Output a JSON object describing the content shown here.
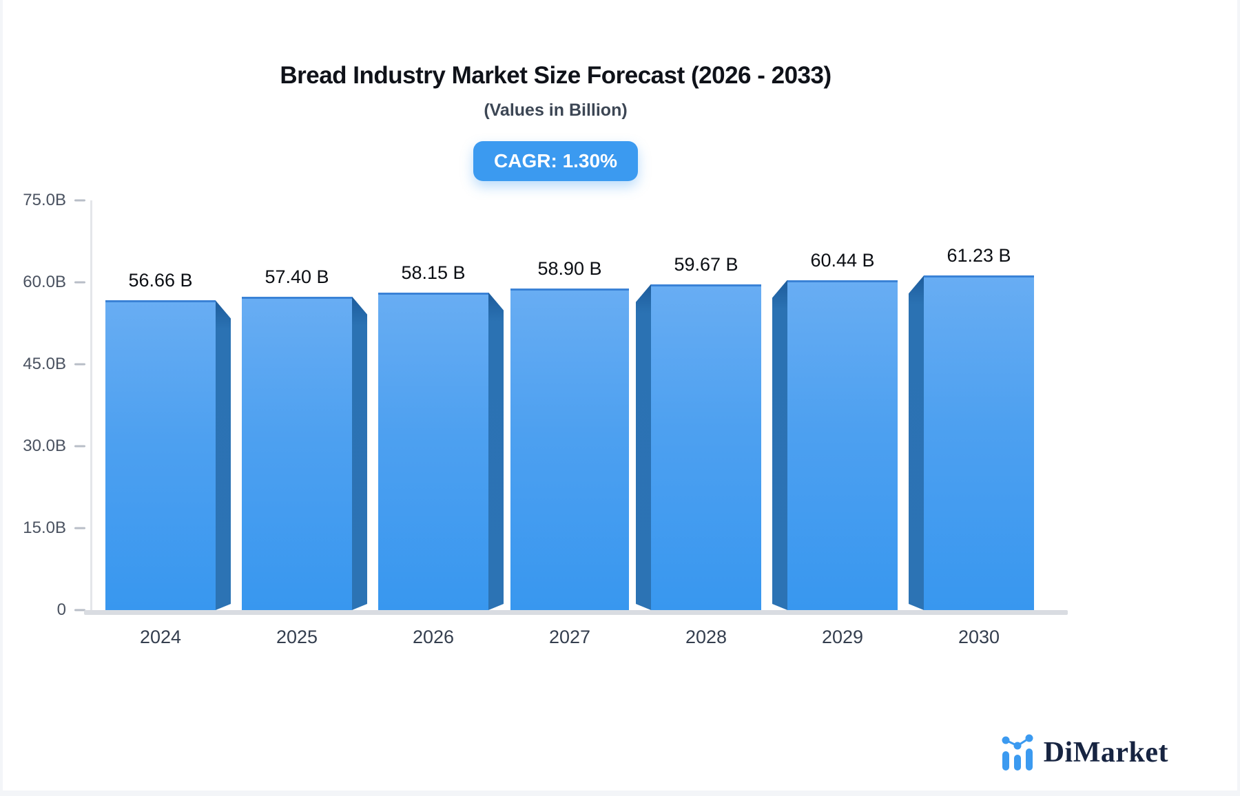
{
  "header": {
    "title": "Bread Industry Market Size Forecast (2026 - 2033)",
    "subtitle": "(Values in Billion)",
    "cagr_label": "CAGR: 1.30%"
  },
  "chart_data": {
    "type": "bar",
    "title": "Bread Industry Market Size Forecast (2026 - 2033)",
    "subtitle": "(Values in Billion)",
    "cagr_percent": "1.30%",
    "categories": [
      "2024",
      "2025",
      "2026",
      "2027",
      "2028",
      "2029",
      "2030"
    ],
    "values": [
      56.66,
      57.4,
      58.15,
      58.9,
      59.67,
      60.44,
      61.23
    ],
    "value_labels": [
      "56.66 B",
      "57.40 B",
      "58.15 B",
      "58.90 B",
      "59.67 B",
      "60.44 B",
      "61.23 B"
    ],
    "xlabel": "",
    "ylabel": "",
    "ylim": [
      0,
      75
    ],
    "y_ticks": [
      {
        "value": 75,
        "label": "75.0B"
      },
      {
        "value": 60,
        "label": "60.0B"
      },
      {
        "value": 45,
        "label": "45.0B"
      },
      {
        "value": 30,
        "label": "30.0B"
      },
      {
        "value": 15,
        "label": "15.0B"
      },
      {
        "value": 0,
        "label": "0"
      }
    ],
    "grid": false,
    "legend": false,
    "bar_style": "3d-perspective",
    "colors": {
      "bar_face_top": "#68adf3",
      "bar_face_bottom": "#3897ef",
      "bar_top_stroke": "#3a82d6",
      "bar_side": "#2b72b3",
      "bar_side_dark": "#1d5c9c",
      "accent": "#3b9af0",
      "axis_line": "#e4e6ea",
      "baseline": "#d9dce1"
    }
  },
  "branding": {
    "logo_text": "DiMarket",
    "logo_icon": "mini-bar-chart-icon",
    "logo_icon_color": "#3b9af0",
    "logo_text_color": "#172441"
  }
}
